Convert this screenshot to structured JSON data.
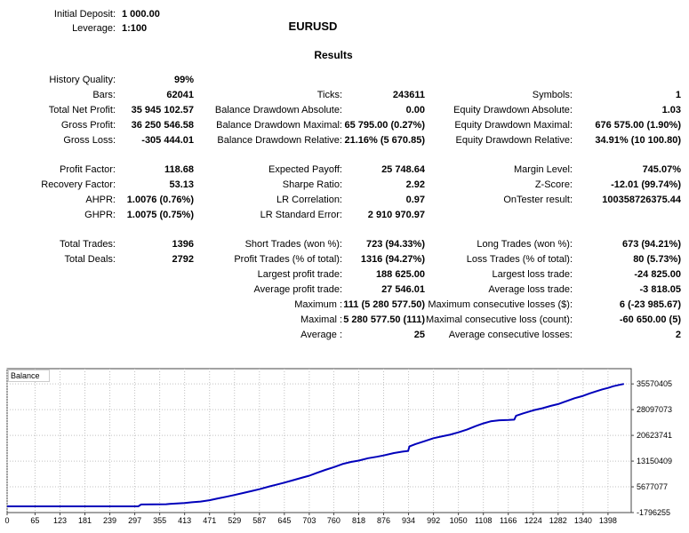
{
  "header": {
    "initial_deposit_label": "Initial Deposit:",
    "initial_deposit_value": "1 000.00",
    "leverage_label": "Leverage:",
    "leverage_value": "1:100",
    "symbol": "EURUSD",
    "results_title": "Results"
  },
  "stats_blocks": [
    [
      [
        "History Quality:",
        "99%",
        "",
        "",
        "",
        ""
      ],
      [
        "Bars:",
        "62041",
        "Ticks:",
        "243611",
        "Symbols:",
        "1"
      ],
      [
        "Total Net Profit:",
        "35 945 102.57",
        "Balance Drawdown Absolute:",
        "0.00",
        "Equity Drawdown Absolute:",
        "1.03"
      ],
      [
        "Gross Profit:",
        "36 250 546.58",
        "Balance Drawdown Maximal:",
        "65 795.00 (0.27%)",
        "Equity Drawdown Maximal:",
        "676 575.00 (1.90%)"
      ],
      [
        "Gross Loss:",
        "-305 444.01",
        "Balance Drawdown Relative:",
        "21.16% (5 670.85)",
        "Equity Drawdown Relative:",
        "34.91% (10 100.80)"
      ]
    ],
    [
      [
        "Profit Factor:",
        "118.68",
        "Expected Payoff:",
        "25 748.64",
        "Margin Level:",
        "745.07%"
      ],
      [
        "Recovery Factor:",
        "53.13",
        "Sharpe Ratio:",
        "2.92",
        "Z-Score:",
        "-12.01 (99.74%)"
      ],
      [
        "AHPR:",
        "1.0076 (0.76%)",
        "LR Correlation:",
        "0.97",
        "OnTester result:",
        "100358726375.44"
      ],
      [
        "GHPR:",
        "1.0075 (0.75%)",
        "LR Standard Error:",
        "2 910 970.97",
        "",
        ""
      ]
    ],
    [
      [
        "Total Trades:",
        "1396",
        "Short Trades (won %):",
        "723 (94.33%)",
        "Long Trades (won %):",
        "673 (94.21%)"
      ],
      [
        "Total Deals:",
        "2792",
        "Profit Trades (% of total):",
        "1316 (94.27%)",
        "Loss Trades (% of total):",
        "80 (5.73%)"
      ],
      [
        "",
        "",
        "Largest profit trade:",
        "188 625.00",
        "Largest loss trade:",
        "-24 825.00"
      ],
      [
        "",
        "",
        "Average profit trade:",
        "27 546.01",
        "Average loss trade:",
        "-3 818.05"
      ],
      [
        "",
        "",
        "Maximum :",
        "111 (5 280 577.50)",
        "Maximum consecutive losses ($):",
        "6 (-23 985.67)"
      ],
      [
        "",
        "",
        "Maximal :",
        "5 280 577.50 (111)",
        "Maximal consecutive loss (count):",
        "-60 650.00 (5)"
      ],
      [
        "",
        "",
        "Average :",
        "25",
        "Average consecutive losses:",
        "2"
      ]
    ]
  ],
  "chart_data": {
    "type": "line",
    "title": "Balance",
    "legend_label": "Balance",
    "xlabel": "",
    "ylabel": "",
    "grid": true,
    "line_color": "#0000bb",
    "grid_color": "#c0c0c0",
    "border_color": "#444444",
    "x_range": [
      0,
      1452
    ],
    "y_range": [
      -1796255,
      40000000
    ],
    "x_ticks": [
      0,
      65,
      123,
      181,
      239,
      297,
      355,
      413,
      471,
      529,
      587,
      645,
      703,
      760,
      818,
      876,
      934,
      992,
      1050,
      1108,
      1166,
      1224,
      1282,
      1340,
      1398
    ],
    "y_ticks": [
      35570405,
      28097073,
      20623741,
      13150409,
      5677077,
      -1796255
    ],
    "series": [
      {
        "name": "Balance",
        "points": [
          [
            0,
            1000
          ],
          [
            305,
            1000
          ],
          [
            312,
            550000
          ],
          [
            370,
            620000
          ],
          [
            378,
            700000
          ],
          [
            413,
            1000000
          ],
          [
            430,
            1200000
          ],
          [
            450,
            1400000
          ],
          [
            471,
            1800000
          ],
          [
            490,
            2300000
          ],
          [
            510,
            2800000
          ],
          [
            529,
            3300000
          ],
          [
            550,
            3900000
          ],
          [
            570,
            4500000
          ],
          [
            587,
            5000000
          ],
          [
            610,
            5800000
          ],
          [
            630,
            6400000
          ],
          [
            645,
            6900000
          ],
          [
            665,
            7600000
          ],
          [
            685,
            8300000
          ],
          [
            703,
            8900000
          ],
          [
            720,
            9700000
          ],
          [
            740,
            10600000
          ],
          [
            760,
            11400000
          ],
          [
            780,
            12300000
          ],
          [
            800,
            12900000
          ],
          [
            818,
            13300000
          ],
          [
            840,
            14000000
          ],
          [
            860,
            14400000
          ],
          [
            876,
            14800000
          ],
          [
            900,
            15500000
          ],
          [
            920,
            15900000
          ],
          [
            933,
            16100000
          ],
          [
            936,
            17400000
          ],
          [
            950,
            18100000
          ],
          [
            970,
            18900000
          ],
          [
            992,
            19800000
          ],
          [
            1010,
            20300000
          ],
          [
            1030,
            20800000
          ],
          [
            1050,
            21500000
          ],
          [
            1070,
            22300000
          ],
          [
            1090,
            23300000
          ],
          [
            1108,
            24100000
          ],
          [
            1125,
            24700000
          ],
          [
            1145,
            25000000
          ],
          [
            1166,
            25100000
          ],
          [
            1180,
            25200000
          ],
          [
            1184,
            26300000
          ],
          [
            1200,
            27000000
          ],
          [
            1224,
            27900000
          ],
          [
            1245,
            28500000
          ],
          [
            1265,
            29200000
          ],
          [
            1282,
            29700000
          ],
          [
            1300,
            30500000
          ],
          [
            1320,
            31400000
          ],
          [
            1340,
            32100000
          ],
          [
            1355,
            32800000
          ],
          [
            1370,
            33400000
          ],
          [
            1385,
            34000000
          ],
          [
            1398,
            34400000
          ],
          [
            1410,
            34900000
          ],
          [
            1425,
            35300000
          ],
          [
            1435,
            35570405
          ]
        ]
      }
    ]
  }
}
